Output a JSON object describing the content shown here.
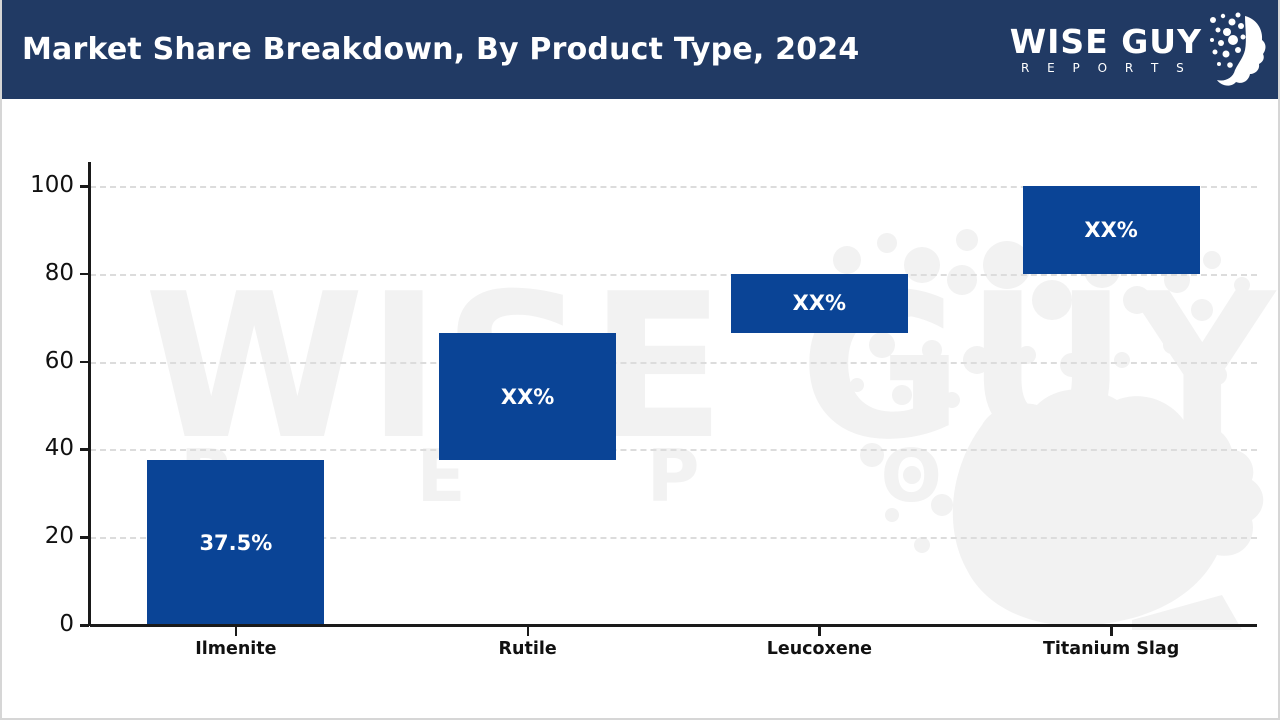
{
  "header": {
    "title": "Market Share Breakdown, By Product Type, 2024",
    "logo": {
      "wordmark": "WISE GUY",
      "subtext": "R E P O R T S"
    }
  },
  "watermark": {
    "line1": "WISE GUY",
    "line2": "R E P O R T S"
  },
  "chart_data": {
    "type": "bar",
    "subtype": "waterfall",
    "title": "Market Share Breakdown, By Product Type, 2024",
    "categories": [
      "Ilmenite",
      "Rutile",
      "Leucoxene",
      "Titanium Slag"
    ],
    "segments": [
      {
        "category": "Ilmenite",
        "start": 0,
        "end": 37.5,
        "value": 37.5,
        "label": "37.5%"
      },
      {
        "category": "Rutile",
        "start": 37.5,
        "end": 66.5,
        "value": 29,
        "label": "XX%"
      },
      {
        "category": "Leucoxene",
        "start": 66.5,
        "end": 80,
        "value": 13.5,
        "label": "XX%"
      },
      {
        "category": "Titanium Slag",
        "start": 80,
        "end": 100,
        "value": 20,
        "label": "XX%"
      }
    ],
    "yticks": [
      0,
      20,
      40,
      60,
      80,
      100
    ],
    "ylim": [
      0,
      100
    ],
    "xlabel": "",
    "ylabel": "",
    "grid": "horizontal-dashed",
    "legend": "none"
  },
  "colors": {
    "header_bg": "#213a64",
    "bar": "#0a4496",
    "bar_label": "#ffffff",
    "grid": "#dcdcdc",
    "axis": "#1a1a1a",
    "tick_text": "#111111",
    "watermark": "#f2f2f2",
    "page_border": "#d6d6d6"
  }
}
